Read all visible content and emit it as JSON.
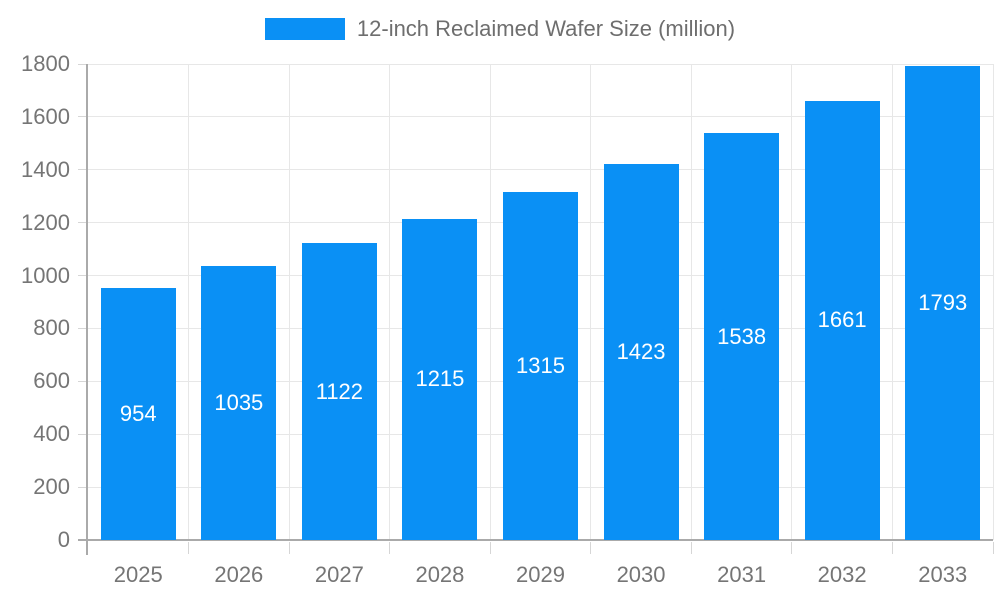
{
  "legend": {
    "label": "12-inch Reclaimed Wafer Size (million)",
    "swatch_color": "#0a90f5"
  },
  "chart_data": {
    "type": "bar",
    "categories": [
      "2025",
      "2026",
      "2027",
      "2028",
      "2029",
      "2030",
      "2031",
      "2032",
      "2033"
    ],
    "values": [
      954,
      1035,
      1122,
      1215,
      1315,
      1423,
      1538,
      1661,
      1793
    ],
    "title": "12-inch Reclaimed Wafer Size (million)",
    "xlabel": "",
    "ylabel": "",
    "ylim": [
      0,
      1800
    ],
    "ytick_step": 200,
    "ytick_labels": [
      "0",
      "200",
      "400",
      "600",
      "800",
      "1000",
      "1200",
      "1400",
      "1600",
      "1800"
    ],
    "grid": true,
    "legend_position": "top",
    "bar_color": "#0a90f5",
    "value_label_color": "#ffffff",
    "axis_color": "#aaaaaa",
    "gridline_color": "#e7e7e7",
    "tick_mark_color": "#d6d6d6",
    "tick_label_color": "#757575",
    "background_color": "#ffffff"
  }
}
